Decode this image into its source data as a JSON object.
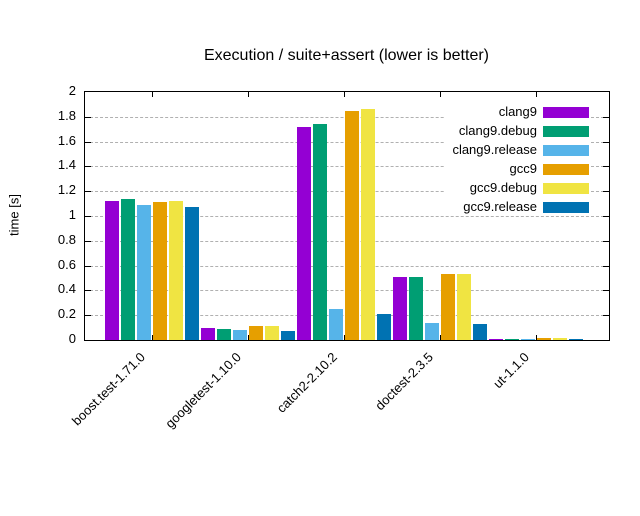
{
  "chart_data": {
    "type": "bar",
    "title": "Execution / suite+assert (lower is better)",
    "xlabel": "",
    "ylabel": "time [s]",
    "ylim": [
      0,
      2
    ],
    "yticks": [
      {
        "label": "0",
        "value": 0
      },
      {
        "label": "0.2",
        "value": 0.2
      },
      {
        "label": "0.4",
        "value": 0.4
      },
      {
        "label": "0.6",
        "value": 0.6
      },
      {
        "label": "0.8",
        "value": 0.8
      },
      {
        "label": "1",
        "value": 1
      },
      {
        "label": "1.2",
        "value": 1.2
      },
      {
        "label": "1.4",
        "value": 1.4
      },
      {
        "label": "1.6",
        "value": 1.6
      },
      {
        "label": "1.8",
        "value": 1.8
      },
      {
        "label": "2",
        "value": 2
      }
    ],
    "grid": "horizontal-dashed",
    "legend_position": "top-right-inside",
    "categories": [
      "boost.test-1.71.0",
      "googletest-1.10.0",
      "catch2-2.10.2",
      "doctest-2.3.5",
      "ut-1.1.0"
    ],
    "series": [
      {
        "name": "clang9",
        "color": "#9400d3",
        "values": [
          1.12,
          0.1,
          1.72,
          0.51,
          0.01
        ]
      },
      {
        "name": "clang9.debug",
        "color": "#009e73",
        "values": [
          1.14,
          0.09,
          1.74,
          0.51,
          0.01
        ]
      },
      {
        "name": "clang9.release",
        "color": "#56b4e9",
        "values": [
          1.09,
          0.08,
          0.25,
          0.14,
          0.01
        ]
      },
      {
        "name": "gcc9",
        "color": "#e69f00",
        "values": [
          1.11,
          0.11,
          1.85,
          0.53,
          0.02
        ]
      },
      {
        "name": "gcc9.debug",
        "color": "#f0e442",
        "values": [
          1.12,
          0.11,
          1.86,
          0.53,
          0.02
        ]
      },
      {
        "name": "gcc9.release",
        "color": "#0072b2",
        "values": [
          1.07,
          0.07,
          0.21,
          0.13,
          0.012
        ]
      }
    ],
    "colors": {
      "axis": "#000000",
      "grid": "#b0b0b0",
      "background": "#ffffff",
      "text": "#000000"
    }
  }
}
